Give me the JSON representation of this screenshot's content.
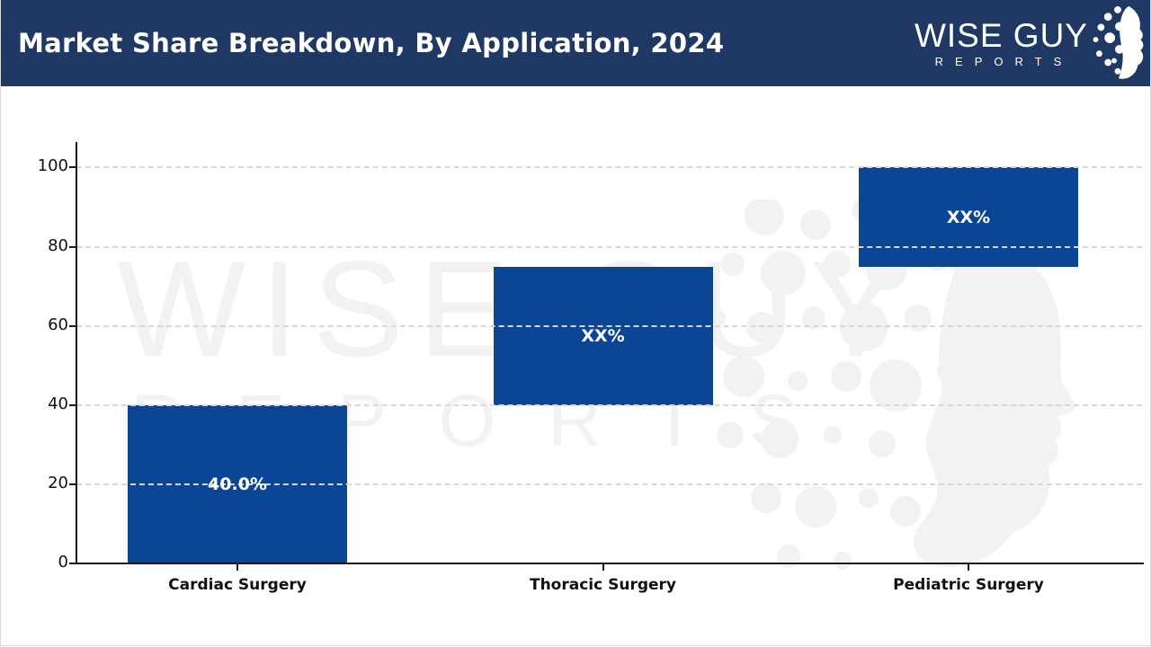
{
  "header": {
    "title": "Market Share Breakdown, By Application, 2024",
    "bg_color": "#1f3864",
    "logo": {
      "line1": "WISE GUY",
      "line2": "REPORTS"
    }
  },
  "watermark": {
    "line1": "WISE GUY",
    "line2": "REPORTS"
  },
  "chart_data": {
    "type": "bar",
    "variant": "floating-segment-waterfall",
    "title": "Market Share Breakdown, By Application, 2024",
    "categories": [
      "Cardiac Surgery",
      "Thoracic Surgery",
      "Pediatric Surgery"
    ],
    "bars": [
      {
        "category": "Cardiac Surgery",
        "start": 0,
        "end": 40,
        "value_label": "40.0%"
      },
      {
        "category": "Thoracic Surgery",
        "start": 40,
        "end": 75,
        "value_label": "XX%"
      },
      {
        "category": "Pediatric Surgery",
        "start": 75,
        "end": 100,
        "value_label": "XX%"
      }
    ],
    "ylabel": "",
    "xlabel": "",
    "yticks": [
      0,
      20,
      40,
      60,
      80,
      100
    ],
    "ylim": [
      0,
      106
    ],
    "grid": "horizontal dashed, drawn over bars",
    "legend": "none",
    "bar_color": "#0a4596",
    "value_label_color": "#ffffff"
  }
}
